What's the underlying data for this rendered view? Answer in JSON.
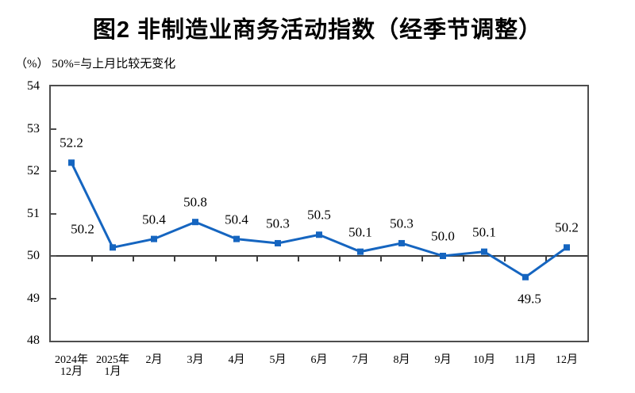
{
  "title": "图2 非制造业商务活动指数（经季节调整）",
  "subtitle": "（%） 50%=与上月比较无变化",
  "chart_data": {
    "type": "line",
    "title": "图2 非制造业商务活动指数（经季节调整）",
    "unit_note": "（%） 50%=与上月比较无变化",
    "categories": [
      [
        "2024年",
        "12月"
      ],
      [
        "2025年",
        "1月"
      ],
      [
        "2月"
      ],
      [
        "3月"
      ],
      [
        "4月"
      ],
      [
        "5月"
      ],
      [
        "6月"
      ],
      [
        "7月"
      ],
      [
        "8月"
      ],
      [
        "9月"
      ],
      [
        "10月"
      ],
      [
        "11月"
      ],
      [
        "12月"
      ]
    ],
    "values": [
      52.2,
      50.2,
      50.4,
      50.8,
      50.4,
      50.3,
      50.5,
      50.1,
      50.3,
      50.0,
      50.1,
      49.5,
      50.2
    ],
    "point_labels": [
      "52.2",
      "50.2",
      "50.4",
      "50.8",
      "50.4",
      "50.3",
      "50.5",
      "50.1",
      "50.3",
      "50.0",
      "50.1",
      "49.5",
      "50.2"
    ],
    "ylim": [
      48,
      54
    ],
    "yticks": [
      48,
      49,
      50,
      51,
      52,
      53,
      54
    ],
    "baseline_value": 50,
    "grid": false,
    "legend": "none",
    "series_color": "#1565C0",
    "axis_color": "#4d4d4d",
    "text_color": "#000000",
    "marker": "square",
    "default_label_offset": [
      0,
      -25
    ],
    "label_offsets": {
      "1": [
        -38,
        -23
      ],
      "11": [
        5,
        27
      ]
    }
  }
}
